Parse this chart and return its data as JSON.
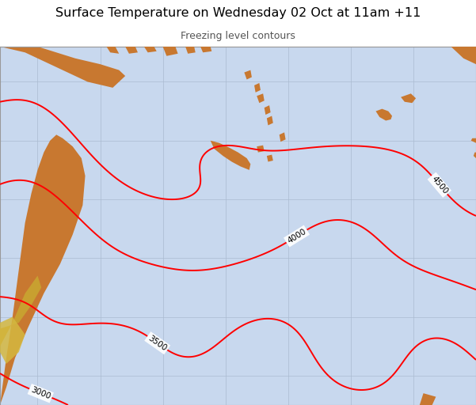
{
  "title": "Surface Temperature on Wednesday 02 Oct at 11am +11",
  "subtitle": "Freezing level contours",
  "title_fontsize": 11.5,
  "subtitle_fontsize": 9,
  "ocean_color": "#c8d8ee",
  "contour_color": "#ff0000",
  "contour_linewidth": 1.4,
  "contour_label_fontsize": 7.5,
  "grid_color": "#aabbd0",
  "grid_linewidth": 0.5,
  "figsize": [
    6.01,
    5.12
  ],
  "dpi": 100,
  "xlim": [
    147.0,
    185.0
  ],
  "ylim": [
    -42.5,
    -12.0
  ],
  "contour_levels": [
    3000,
    3500,
    4000,
    4500
  ]
}
